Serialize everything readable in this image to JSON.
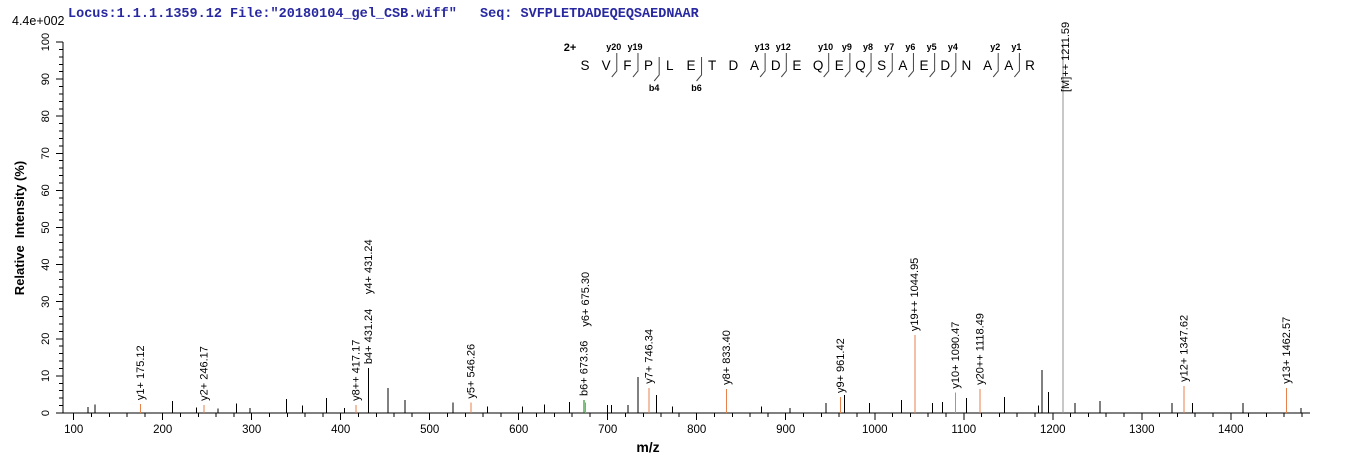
{
  "header": {
    "locus_file": "Locus:1.1.1.1359.12 File:\"20180104_gel_CSB.wiff\"",
    "seq": "Seq: SVFPLETDADEQEQSAEDNAAR",
    "max_intensity_label": "4.4e+002"
  },
  "colors": {
    "header_text": "#2828A0",
    "y_ion": "#E8824B",
    "b_ion": "#008000",
    "peak": "#000000",
    "precursor": "#909090",
    "charge_label": "#2222CC",
    "sequence_letter": "#000000",
    "bracket": "#444444"
  },
  "chart_data": {
    "type": "bar",
    "subtype": "ms2-fragmentation-spectrum",
    "xlabel": "m/z",
    "ylabel": "Relative  Intensity (%)",
    "xlim": [
      88,
      1489
    ],
    "ylim": [
      0,
      100
    ],
    "x_tick_step_major": 100,
    "x_tick_step_minor": 20,
    "y_tick_step_major": 10,
    "y_tick_step_minor": 2,
    "x_tick_labels": [
      100,
      200,
      300,
      400,
      500,
      600,
      700,
      800,
      900,
      1000,
      1100,
      1200,
      1300,
      1400
    ],
    "y_tick_labels": [
      0,
      10,
      20,
      30,
      40,
      50,
      60,
      70,
      80,
      90,
      100
    ],
    "precursor": {
      "mz": 1211.59,
      "pct": 100,
      "label": "[M]++ 1211.59"
    },
    "sequence": {
      "charge_label": "2+",
      "residues": [
        "S",
        "V",
        "F",
        "P",
        "L",
        "E",
        "T",
        "D",
        "A",
        "D",
        "E",
        "Q",
        "E",
        "Q",
        "S",
        "A",
        "E",
        "D",
        "N",
        "A",
        "A",
        "R"
      ],
      "y_ion_marks": [
        {
          "label": "y20",
          "before_residue_index": 2
        },
        {
          "label": "y19",
          "before_residue_index": 3
        },
        {
          "label": "y13",
          "before_residue_index": 9
        },
        {
          "label": "y12",
          "before_residue_index": 10
        },
        {
          "label": "y10",
          "before_residue_index": 12
        },
        {
          "label": "y9",
          "before_residue_index": 13
        },
        {
          "label": "y8",
          "before_residue_index": 14
        },
        {
          "label": "y7",
          "before_residue_index": 15
        },
        {
          "label": "y6",
          "before_residue_index": 16
        },
        {
          "label": "y5",
          "before_residue_index": 17
        },
        {
          "label": "y4",
          "before_residue_index": 18
        },
        {
          "label": "y2",
          "before_residue_index": 20
        },
        {
          "label": "y1",
          "before_residue_index": 21
        }
      ],
      "b_ion_marks": [
        {
          "label": "b4",
          "after_residue_index": 3
        },
        {
          "label": "b6",
          "after_residue_index": 5
        }
      ]
    },
    "labeled_peaks": [
      {
        "label": "y1+ 175.12",
        "mz": 175.12,
        "pct": 2.4,
        "ion": "y"
      },
      {
        "label": "y2+ 246.17",
        "mz": 246.17,
        "pct": 2.2,
        "ion": "y"
      },
      {
        "label": "y8++ 417.17",
        "mz": 417.17,
        "pct": 2.2,
        "ion": "y"
      },
      {
        "label": "b4+ 431.24",
        "mz": 431.24,
        "pct": 12.1,
        "ion": "b",
        "line_color": "#000000"
      },
      {
        "label": "y4+ 431.24",
        "mz": 431.24,
        "pct": 12.1,
        "ion": "y",
        "label_offset": 70,
        "draw_line": false
      },
      {
        "label": "y5+ 546.26",
        "mz": 546.26,
        "pct": 2.8,
        "ion": "y"
      },
      {
        "label": "b6+ 673.36",
        "mz": 673.36,
        "pct": 3.5,
        "ion": "b"
      },
      {
        "label": "y6+ 675.30",
        "mz": 675.3,
        "pct": 2.8,
        "ion": "y",
        "label_offset": 72
      },
      {
        "label": "y7+ 746.34",
        "mz": 746.34,
        "pct": 6.8,
        "ion": "y"
      },
      {
        "label": "y8+ 833.40",
        "mz": 833.4,
        "pct": 6.5,
        "ion": "y"
      },
      {
        "label": "y9+ 961.42",
        "mz": 961.42,
        "pct": 4.3,
        "ion": "y"
      },
      {
        "label": "y19++ 1044.95",
        "mz": 1044.95,
        "pct": 21.0,
        "ion": "y"
      },
      {
        "label": "y10+ 1090.47",
        "mz": 1090.47,
        "pct": 5.5,
        "ion": "y"
      },
      {
        "label": "y20++ 1118.49",
        "mz": 1118.49,
        "pct": 6.5,
        "ion": "y"
      },
      {
        "label": "y12+ 1347.62",
        "mz": 1347.62,
        "pct": 7.3,
        "ion": "y"
      },
      {
        "label": "y13+ 1462.57",
        "mz": 1462.57,
        "pct": 6.8,
        "ion": "y"
      }
    ],
    "unlabeled_peaks": [
      [
        116,
        1.6
      ],
      [
        124,
        2.3
      ],
      [
        211,
        3.2
      ],
      [
        238,
        1.5
      ],
      [
        262,
        1.2
      ],
      [
        283,
        2.6
      ],
      [
        298,
        1.3
      ],
      [
        339,
        3.8
      ],
      [
        357,
        2.0
      ],
      [
        384,
        4.0
      ],
      [
        404,
        1.4
      ],
      [
        453,
        6.7
      ],
      [
        472,
        3.5
      ],
      [
        526,
        2.8
      ],
      [
        565,
        1.7
      ],
      [
        604,
        1.7
      ],
      [
        629,
        2.3
      ],
      [
        657,
        3.0
      ],
      [
        700,
        2.2
      ],
      [
        704,
        2.2
      ],
      [
        723,
        2.2
      ],
      [
        734,
        9.7
      ],
      [
        755,
        4.9
      ],
      [
        773,
        1.7
      ],
      [
        873,
        1.7
      ],
      [
        905,
        1.4
      ],
      [
        945,
        2.7
      ],
      [
        966,
        4.9
      ],
      [
        994,
        2.7
      ],
      [
        1030,
        3.5
      ],
      [
        1065,
        2.7
      ],
      [
        1076,
        3.0
      ],
      [
        1103,
        4.0
      ],
      [
        1146,
        4.3
      ],
      [
        1184,
        2.0
      ],
      [
        1188,
        11.6
      ],
      [
        1195,
        5.7
      ],
      [
        1225,
        2.7
      ],
      [
        1253,
        3.2
      ],
      [
        1334,
        2.7
      ],
      [
        1357,
        2.7
      ],
      [
        1414,
        2.7
      ],
      [
        1479,
        1.3
      ]
    ]
  }
}
